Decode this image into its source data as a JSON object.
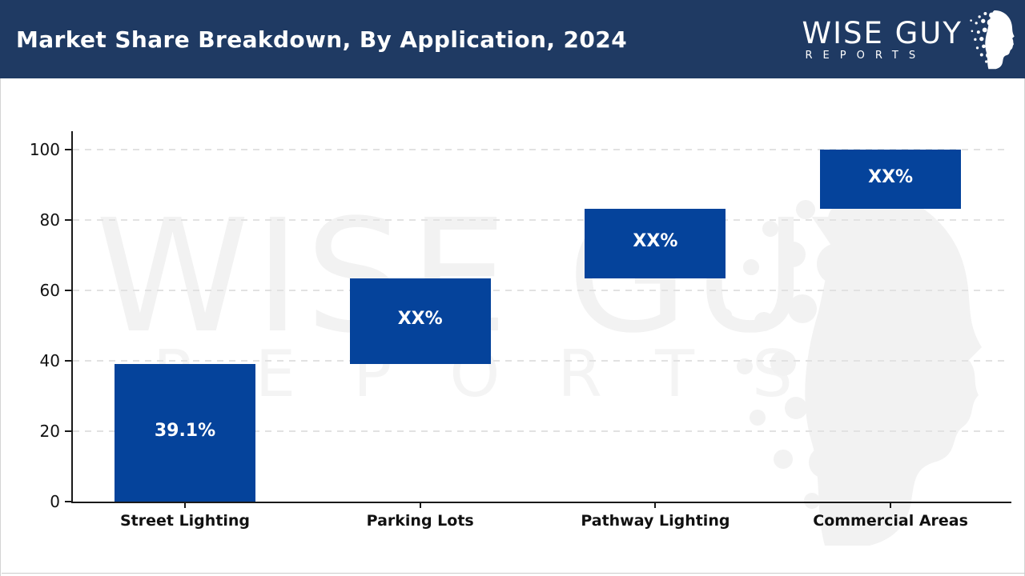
{
  "header": {
    "title": "Market Share Breakdown, By Application, 2024",
    "bg_color": "#1f3a63",
    "logo": {
      "line1": "WISE GUY",
      "line2": "REPORTS"
    }
  },
  "watermark": {
    "line1": "WISE GUY",
    "line2": "REPORTS"
  },
  "chart_data": {
    "type": "bar",
    "subtype": "waterfall",
    "title": "Market Share Breakdown, By Application, 2024",
    "categories": [
      "Street Lighting",
      "Parking Lots",
      "Pathway Lighting",
      "Commercial Areas"
    ],
    "series": [
      {
        "name": "Market share (%)",
        "segments": [
          {
            "category": "Street Lighting",
            "start": 0,
            "end": 39.1,
            "label": "39.1%"
          },
          {
            "category": "Parking Lots",
            "start": 39.1,
            "end": 63.4,
            "label": "XX%"
          },
          {
            "category": "Pathway Lighting",
            "start": 63.4,
            "end": 83.2,
            "label": "XX%"
          },
          {
            "category": "Commercial Areas",
            "start": 83.2,
            "end": 100,
            "label": "XX%"
          }
        ]
      }
    ],
    "ylim": [
      0,
      100
    ],
    "yticks": [
      0,
      20,
      40,
      60,
      80,
      100
    ],
    "grid": "horizontal-dashed",
    "legend": "none",
    "bar_color": "#05439b",
    "bar_label_color": "#ffffff",
    "axis_color": "#1a1a1a",
    "grid_color": "#e2e2e2"
  }
}
